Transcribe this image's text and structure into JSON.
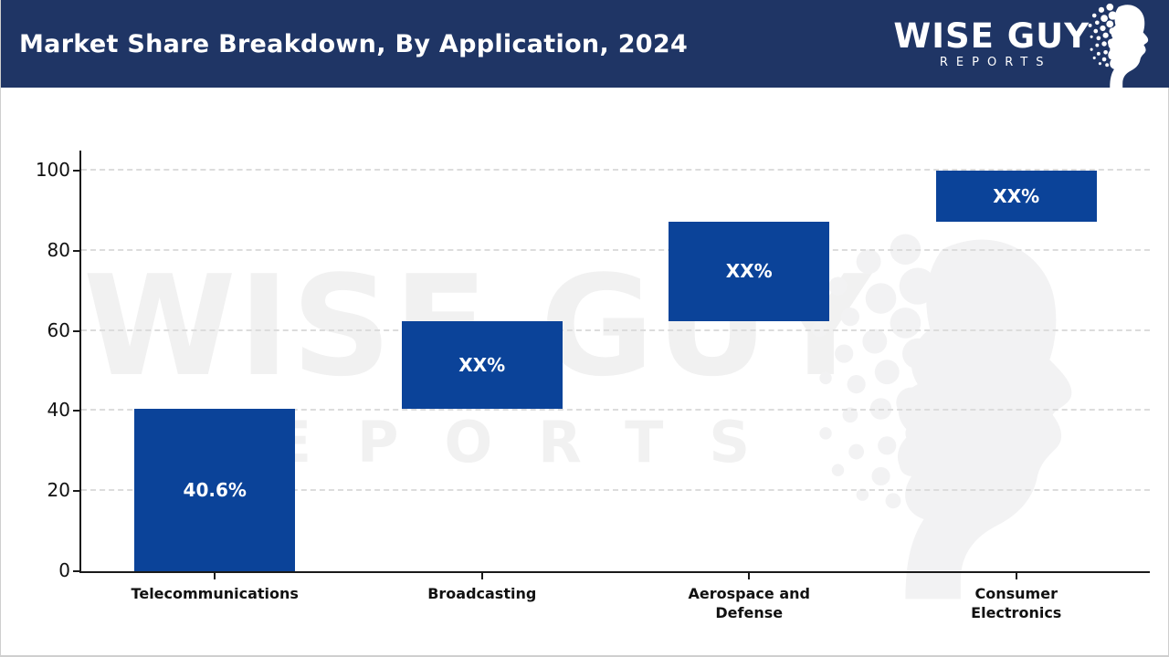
{
  "header": {
    "title": "Market Share Breakdown, By Application, 2024",
    "logo": {
      "name": "WISE GUY",
      "sub": "REPORTS"
    }
  },
  "watermark": {
    "line1": "WISE GUY",
    "line2": "REPORTS"
  },
  "chart_data": {
    "type": "bar",
    "variant": "waterfall-segments",
    "title": "Market Share Breakdown, By Application, 2024",
    "categories": [
      "Telecommunications",
      "Broadcasting",
      "Aerospace and Defense",
      "Consumer Electronics"
    ],
    "category_label_lines": [
      [
        "Telecommunications"
      ],
      [
        "Broadcasting"
      ],
      [
        "Aerospace and",
        "Defense"
      ],
      [
        "Consumer",
        "Electronics"
      ]
    ],
    "segments": [
      {
        "category": "Telecommunications",
        "start": 0,
        "end": 40.6,
        "label": "40.6%"
      },
      {
        "category": "Broadcasting",
        "start": 40.6,
        "end": 62.5,
        "label": "XX%"
      },
      {
        "category": "Aerospace and Defense",
        "start": 62.5,
        "end": 87.3,
        "label": "XX%"
      },
      {
        "category": "Consumer Electronics",
        "start": 87.3,
        "end": 100.0,
        "label": "XX%"
      }
    ],
    "yticks": [
      0,
      20,
      40,
      60,
      80,
      100
    ],
    "ylim": [
      0,
      100
    ],
    "grid": "horizontal-dashed",
    "legend": "none",
    "colors": {
      "bar": "#0b4399",
      "bar_label": "#ffffff",
      "header_bg": "#1f3565",
      "axis": "#1a1a1a",
      "gridline": "#dcdcdc",
      "watermark": "#f1f1f1"
    }
  }
}
